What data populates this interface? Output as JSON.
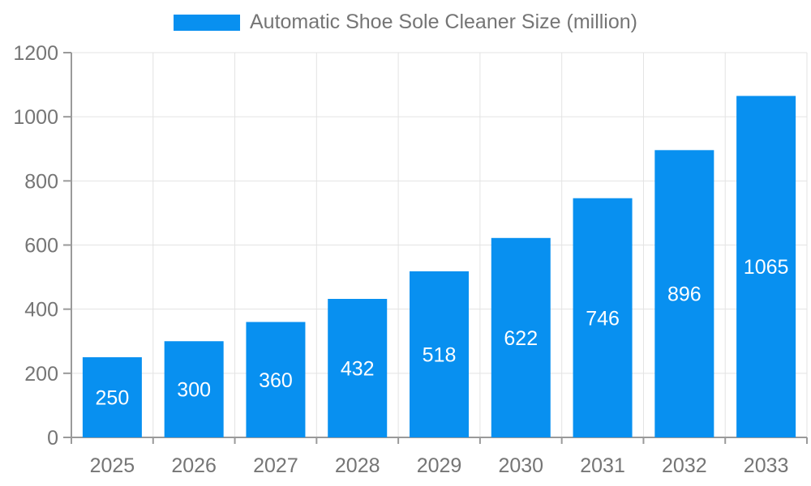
{
  "chart_data": {
    "type": "bar",
    "title": "Automatic Shoe Sole Cleaner Size (million)",
    "categories": [
      "2025",
      "2026",
      "2027",
      "2028",
      "2029",
      "2030",
      "2031",
      "2032",
      "2033"
    ],
    "values": [
      250,
      300,
      360,
      432,
      518,
      622,
      746,
      896,
      1065
    ],
    "xlabel": "",
    "ylabel": "",
    "ylim": [
      0,
      1200
    ],
    "yticks": [
      0,
      200,
      400,
      600,
      800,
      1000,
      1200
    ],
    "grid": true,
    "legend_position": "top-center",
    "value_labels": "inside-center",
    "colors": {
      "bar": "#0890f0",
      "value_label": "#ffffff",
      "grid": "#e3e3e3",
      "axis": "#9a9a9a",
      "tick_text": "#757575",
      "background": "#ffffff"
    }
  },
  "legend": {
    "label": "Automatic Shoe Sole Cleaner Size (million)",
    "swatch_color": "#0890f0"
  }
}
